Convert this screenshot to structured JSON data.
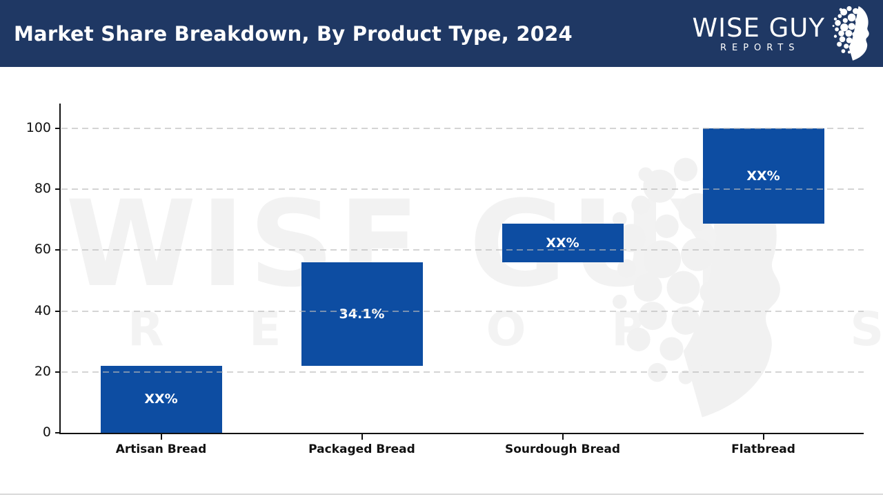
{
  "header": {
    "title": "Market Share Breakdown, By Product Type, 2024",
    "background_color": "#1f3864",
    "logo": {
      "line1": "WISE GUY",
      "line2": "REPORTS"
    }
  },
  "watermark": {
    "line1": "WISE GUY",
    "line2": "R E P O R T S"
  },
  "chart_data": {
    "type": "bar",
    "subtype": "waterfall-floating-segments",
    "title": "Market Share Breakdown, By Product Type, 2024",
    "categories": [
      "Artisan Bread",
      "Packaged Bread",
      "Sourdough Bread",
      "Flatbread"
    ],
    "segments": [
      {
        "category": "Artisan Bread",
        "start": 0,
        "end": 22,
        "label": "XX%"
      },
      {
        "category": "Packaged Bread",
        "start": 22,
        "end": 56.1,
        "label": "34.1%"
      },
      {
        "category": "Sourdough Bread",
        "start": 56.1,
        "end": 68.6,
        "label": "XX%"
      },
      {
        "category": "Flatbread",
        "start": 68.6,
        "end": 100,
        "label": "XX%"
      }
    ],
    "xlabel": "",
    "ylabel": "",
    "yticks": [
      0,
      20,
      40,
      60,
      80,
      100
    ],
    "ylim": [
      0,
      105
    ],
    "grid": "horizontal dashed, drawn above bars",
    "legend": "none",
    "bar_color": "#0d4da2",
    "bar_label_color": "#ffffff",
    "axis_color": "#111111"
  }
}
